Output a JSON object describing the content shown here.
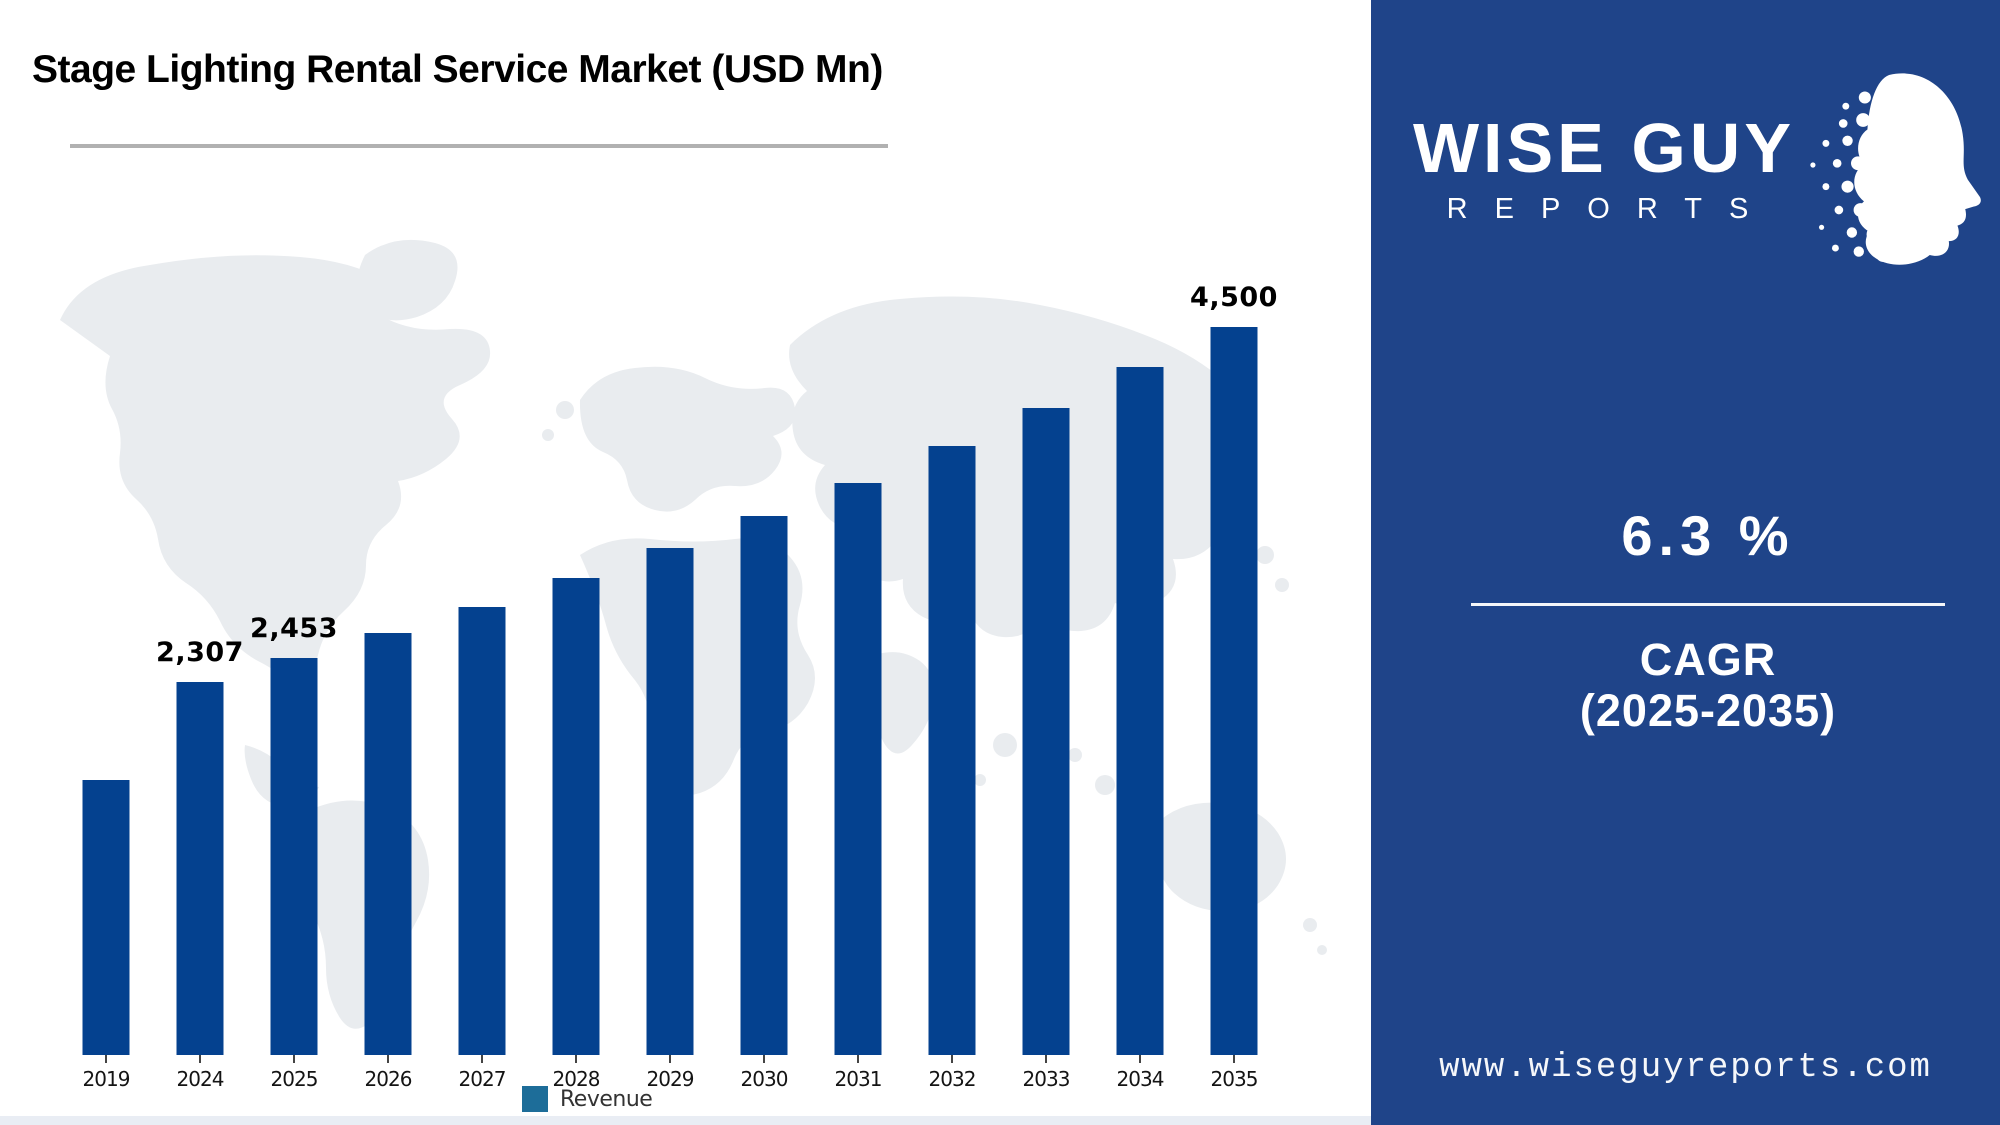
{
  "chart_data": {
    "type": "bar",
    "title": "Stage Lighting Rental Service Market (USD Mn)",
    "categories": [
      "2019",
      "2024",
      "2025",
      "2026",
      "2027",
      "2028",
      "2029",
      "2030",
      "2031",
      "2032",
      "2033",
      "2034",
      "2035"
    ],
    "values": [
      1700,
      2307,
      2453,
      2608,
      2772,
      2947,
      3133,
      3330,
      3540,
      3763,
      4000,
      4252,
      4500
    ],
    "bar_labels": [
      "",
      "2,307",
      "2,453",
      "",
      "",
      "",
      "",
      "",
      "",
      "",
      "",
      "",
      "4,500"
    ],
    "series_name": "Revenue",
    "legend": [
      {
        "label": "Revenue",
        "color": "#1d6d99"
      }
    ],
    "legend_position": "bottom-center",
    "grid": false,
    "ylim": [
      0,
      4650
    ],
    "bar_color": "#04418f"
  },
  "panel": {
    "bg_color": "#1f4489",
    "logo_line1": "WISE GUY",
    "logo_line2": "REPORTS",
    "cagr_value": "6.3 %",
    "cagr_label": "CAGR",
    "cagr_range": "(2025-2035)",
    "website": "www.wiseguyreports.com"
  }
}
